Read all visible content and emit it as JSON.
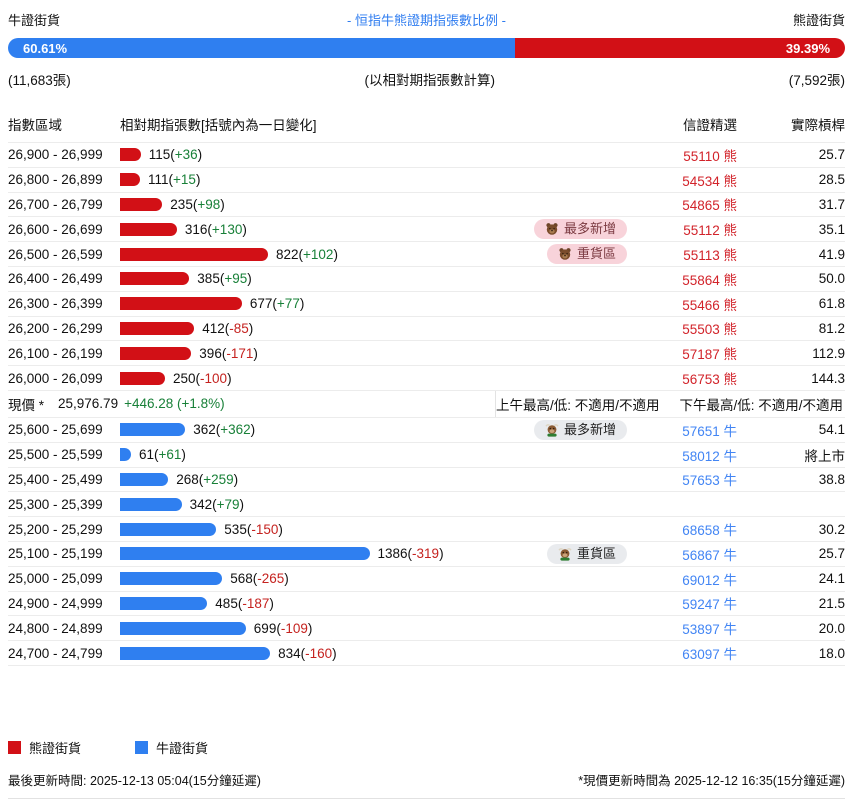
{
  "header": {
    "bull_label": "牛證街貨",
    "title": "- 恒指牛熊證期指張數比例 -",
    "bear_label": "熊證街貨",
    "bull_pct": "60.61%",
    "bear_pct": "39.39%",
    "bull_pct_value": 60.61,
    "bear_pct_value": 39.39,
    "bull_total": "(11,683張)",
    "calc_note": "(以相對期指張數計算)",
    "bear_total": "(7,592張)"
  },
  "columns": {
    "range": "指數區域",
    "contracts": "相對期指張數[括號內為一日變化]",
    "pick": "信證精選",
    "leverage": "實際槓桿"
  },
  "bear_rows": [
    {
      "range": "26,900 - 26,999",
      "value": 115,
      "change": "+36",
      "code": "55110 熊",
      "leverage": "25.7"
    },
    {
      "range": "26,800 - 26,899",
      "value": 111,
      "change": "+15",
      "code": "54534 熊",
      "leverage": "28.5"
    },
    {
      "range": "26,700 - 26,799",
      "value": 235,
      "change": "+98",
      "code": "54865 熊",
      "leverage": "31.7"
    },
    {
      "range": "26,600 - 26,699",
      "value": 316,
      "change": "+130",
      "badge": {
        "icon": "bear-icon",
        "label": "最多新增"
      },
      "code": "55112 熊",
      "leverage": "35.1"
    },
    {
      "range": "26,500 - 26,599",
      "value": 822,
      "change": "+102",
      "badge": {
        "icon": "bear-icon",
        "label": "重貨區"
      },
      "code": "55113 熊",
      "leverage": "41.9"
    },
    {
      "range": "26,400 - 26,499",
      "value": 385,
      "change": "+95",
      "code": "55864 熊",
      "leverage": "50.0"
    },
    {
      "range": "26,300 - 26,399",
      "value": 677,
      "change": "+77",
      "code": "55466 熊",
      "leverage": "61.8"
    },
    {
      "range": "26,200 - 26,299",
      "value": 412,
      "change": "-85",
      "code": "55503 熊",
      "leverage": "81.2"
    },
    {
      "range": "26,100 - 26,199",
      "value": 396,
      "change": "-171",
      "code": "57187 熊",
      "leverage": "112.9"
    },
    {
      "range": "26,000 - 26,099",
      "value": 250,
      "change": "-100",
      "code": "56753 熊",
      "leverage": "144.3"
    }
  ],
  "current": {
    "label": "現價 *",
    "price": "25,976.79",
    "change": "+446.28 (+1.8%)",
    "am_high_low": "上午最高/低: 不適用/不適用",
    "pm_high_low": "下午最高/低: 不適用/不適用"
  },
  "bull_rows": [
    {
      "range": "25,600 - 25,699",
      "value": 362,
      "change": "+362",
      "badge": {
        "icon": "bull-icon",
        "label": "最多新增"
      },
      "code": "57651 牛",
      "leverage": "54.1"
    },
    {
      "range": "25,500 - 25,599",
      "value": 61,
      "change": "+61",
      "code": "58012 牛",
      "leverage": "將上市"
    },
    {
      "range": "25,400 - 25,499",
      "value": 268,
      "change": "+259",
      "code": "57653 牛",
      "leverage": "38.8"
    },
    {
      "range": "25,300 - 25,399",
      "value": 342,
      "change": "+79",
      "code": "",
      "leverage": ""
    },
    {
      "range": "25,200 - 25,299",
      "value": 535,
      "change": "-150",
      "code": "68658 牛",
      "leverage": "30.2"
    },
    {
      "range": "25,100 - 25,199",
      "value": 1386,
      "change": "-319",
      "badge": {
        "icon": "bull-icon",
        "label": "重貨區"
      },
      "code": "56867 牛",
      "leverage": "25.7"
    },
    {
      "range": "25,000 - 25,099",
      "value": 568,
      "change": "-265",
      "code": "69012 牛",
      "leverage": "24.1"
    },
    {
      "range": "24,900 - 24,999",
      "value": 485,
      "change": "-187",
      "code": "59247 牛",
      "leverage": "21.5"
    },
    {
      "range": "24,800 - 24,899",
      "value": 699,
      "change": "-109",
      "code": "53897 牛",
      "leverage": "20.0"
    },
    {
      "range": "24,700 - 24,799",
      "value": 834,
      "change": "-160",
      "code": "63097 牛",
      "leverage": "18.0"
    }
  ],
  "legend": {
    "bear": "熊證街貨",
    "bull": "牛證街貨"
  },
  "footer": {
    "last_update": "最後更新時間: 2025-12-13 05:04(15分鐘延遲)",
    "price_update": "*現價更新時間為 2025-12-12 16:35(15分鐘延遲)"
  },
  "colors": {
    "bull_blue": "#2f7ff0",
    "bear_red": "#d21016",
    "change_up_green": "#188038",
    "change_down_red": "#c5221f",
    "bull_code_blue": "#4285f4",
    "bear_code_red": "#d2232a",
    "bear_badge_bg": "#f8d3da",
    "bull_badge_bg": "#e9ebee"
  },
  "chart_data": {
    "type": "bar",
    "title": "恒指牛熊證期指張數比例",
    "xlabel": "相對期指張數",
    "ylabel": "指數區域",
    "legend_position": "bottom",
    "series": [
      {
        "name": "熊證街貨",
        "color": "#d21016",
        "categories": [
          "26,900 - 26,999",
          "26,800 - 26,899",
          "26,700 - 26,799",
          "26,600 - 26,699",
          "26,500 - 26,599",
          "26,400 - 26,499",
          "26,300 - 26,399",
          "26,200 - 26,299",
          "26,100 - 26,199",
          "26,000 - 26,099"
        ],
        "values": [
          115,
          111,
          235,
          316,
          822,
          385,
          677,
          412,
          396,
          250
        ],
        "one_day_change": [
          36,
          15,
          98,
          130,
          102,
          95,
          77,
          -85,
          -171,
          -100
        ],
        "total_pct": 39.39,
        "total_contracts": 7592
      },
      {
        "name": "牛證街貨",
        "color": "#2f7ff0",
        "categories": [
          "25,600 - 25,699",
          "25,500 - 25,599",
          "25,400 - 25,499",
          "25,300 - 25,399",
          "25,200 - 25,299",
          "25,100 - 25,199",
          "25,000 - 25,099",
          "24,900 - 24,999",
          "24,800 - 24,899",
          "24,700 - 24,799"
        ],
        "values": [
          362,
          61,
          268,
          342,
          535,
          1386,
          568,
          485,
          699,
          834
        ],
        "one_day_change": [
          362,
          61,
          259,
          79,
          -150,
          -319,
          -265,
          -187,
          -109,
          -160
        ],
        "total_pct": 60.61,
        "total_contracts": 11683
      }
    ],
    "annotations": {
      "current_price": 25976.79,
      "current_price_change": "+446.28 (+1.8%)",
      "bear_most_added_range": "26,600 - 26,699",
      "bear_heavy_zone_range": "26,500 - 26,599",
      "bull_most_added_range": "25,600 - 25,699",
      "bull_heavy_zone_range": "25,100 - 25,199"
    }
  }
}
